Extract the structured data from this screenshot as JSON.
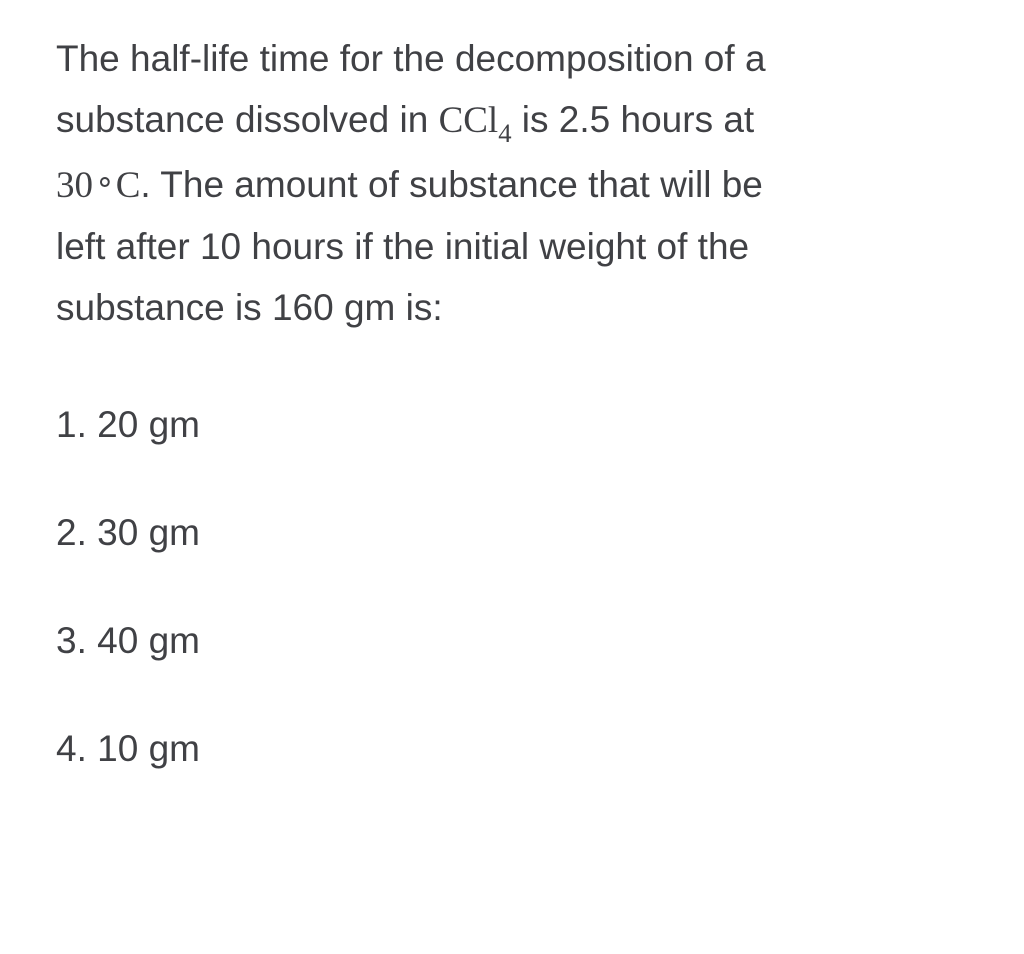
{
  "question": {
    "line1_pre": "The half-life time for the decomposition of a",
    "line2_pre": "substance dissolved in ",
    "chem_main": "CCl",
    "chem_sub": "4",
    "line2_post": " is 2.5 hours at",
    "temp_num": "30",
    "temp_unit": "C",
    "line3_post": ". The amount of substance that will be",
    "line4": "left after 10 hours if the initial weight of the",
    "line5": "substance is 160 gm is:"
  },
  "options": [
    {
      "num": "1.",
      "text": "20 gm"
    },
    {
      "num": "2.",
      "text": "30 gm"
    },
    {
      "num": "3.",
      "text": "40 gm"
    },
    {
      "num": "4.",
      "text": "10 gm"
    }
  ],
  "style": {
    "text_color": "#404145",
    "background": "#ffffff",
    "fontsize_body": 37,
    "line_height": 1.65,
    "option_gap": 60
  }
}
